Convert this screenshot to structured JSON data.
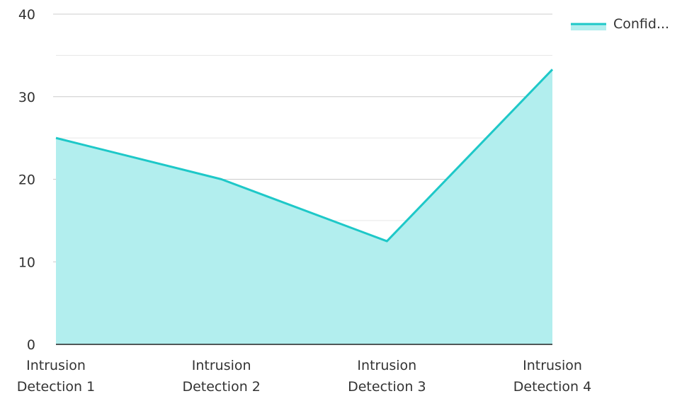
{
  "chart_data": {
    "type": "area",
    "categories": [
      "Intrusion Detection 1",
      "Intrusion Detection 2",
      "Intrusion Detection 3",
      "Intrusion Detection 4"
    ],
    "category_lines": [
      [
        "Intrusion",
        "Detection 1"
      ],
      [
        "Intrusion",
        "Detection 2"
      ],
      [
        "Intrusion",
        "Detection 3"
      ],
      [
        "Intrusion",
        "Detection 4"
      ]
    ],
    "series": [
      {
        "name": "Confid...",
        "values": [
          25,
          20,
          12.5,
          33.3
        ]
      }
    ],
    "title": "",
    "xlabel": "",
    "ylabel": "",
    "ylim": [
      0,
      40
    ],
    "yticks": [
      0,
      10,
      20,
      30,
      40
    ],
    "grid": true,
    "legend": "top-right",
    "colors": {
      "line": "#1ec8c8",
      "fill": "#b2eeee",
      "grid_major": "#cccccc",
      "grid_minor": "#e6e6e6",
      "axis": "#222222"
    }
  }
}
